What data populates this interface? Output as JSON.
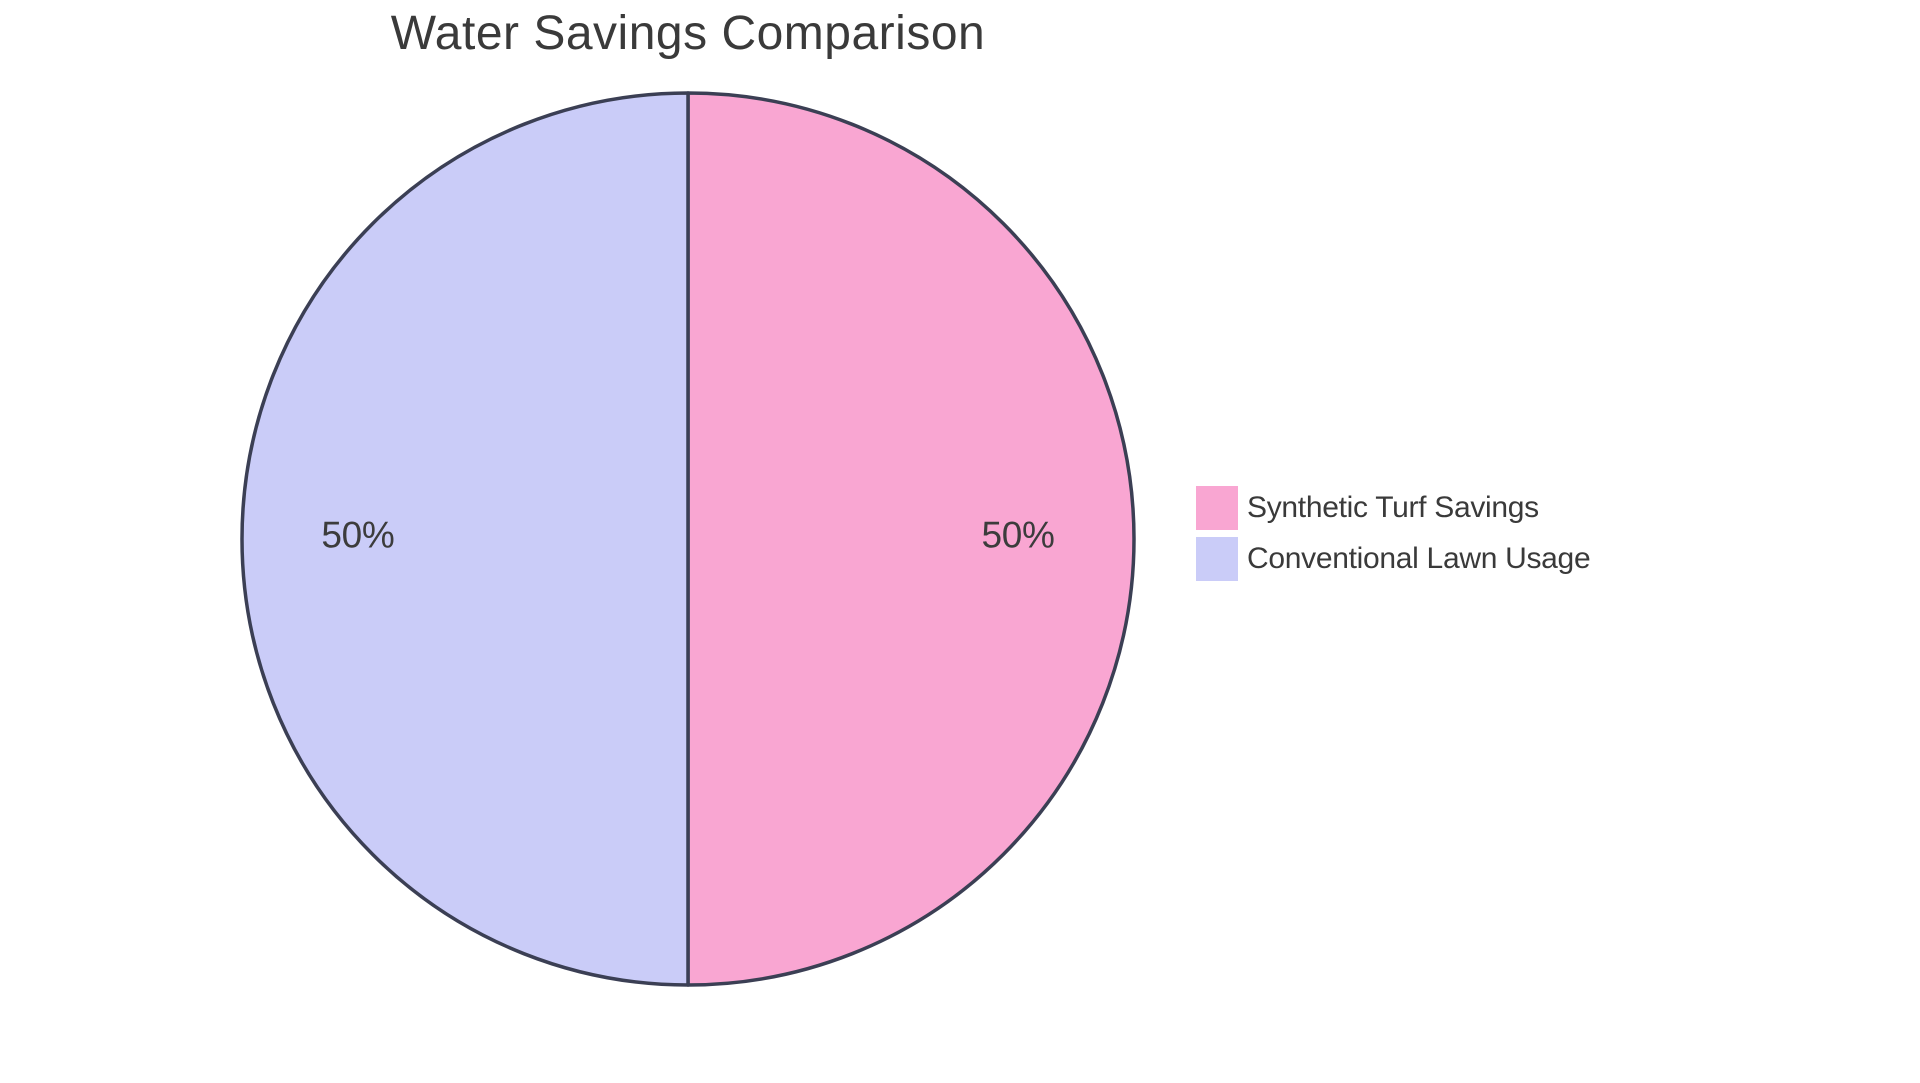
{
  "chart_data": {
    "type": "pie",
    "title": "Water Savings Comparison",
    "categories": [
      "Synthetic Turf Savings",
      "Conventional Lawn Usage"
    ],
    "values": [
      50,
      50
    ],
    "slices": [
      {
        "label": "Synthetic Turf Savings",
        "value": 50,
        "percent_label": "50%",
        "color": "#F9A6D2"
      },
      {
        "label": "Conventional Lawn Usage",
        "value": 50,
        "percent_label": "50%",
        "color": "#CACCF8"
      }
    ],
    "start_angle": "top",
    "direction": "clockwise",
    "legend_position": "right",
    "colors": {
      "slice_border": "#3B3F54",
      "title_text": "#3A3A3A",
      "label_text": "#3C3C3C",
      "legend_text": "#3A3A3A",
      "background": "#FFFFFF"
    }
  }
}
